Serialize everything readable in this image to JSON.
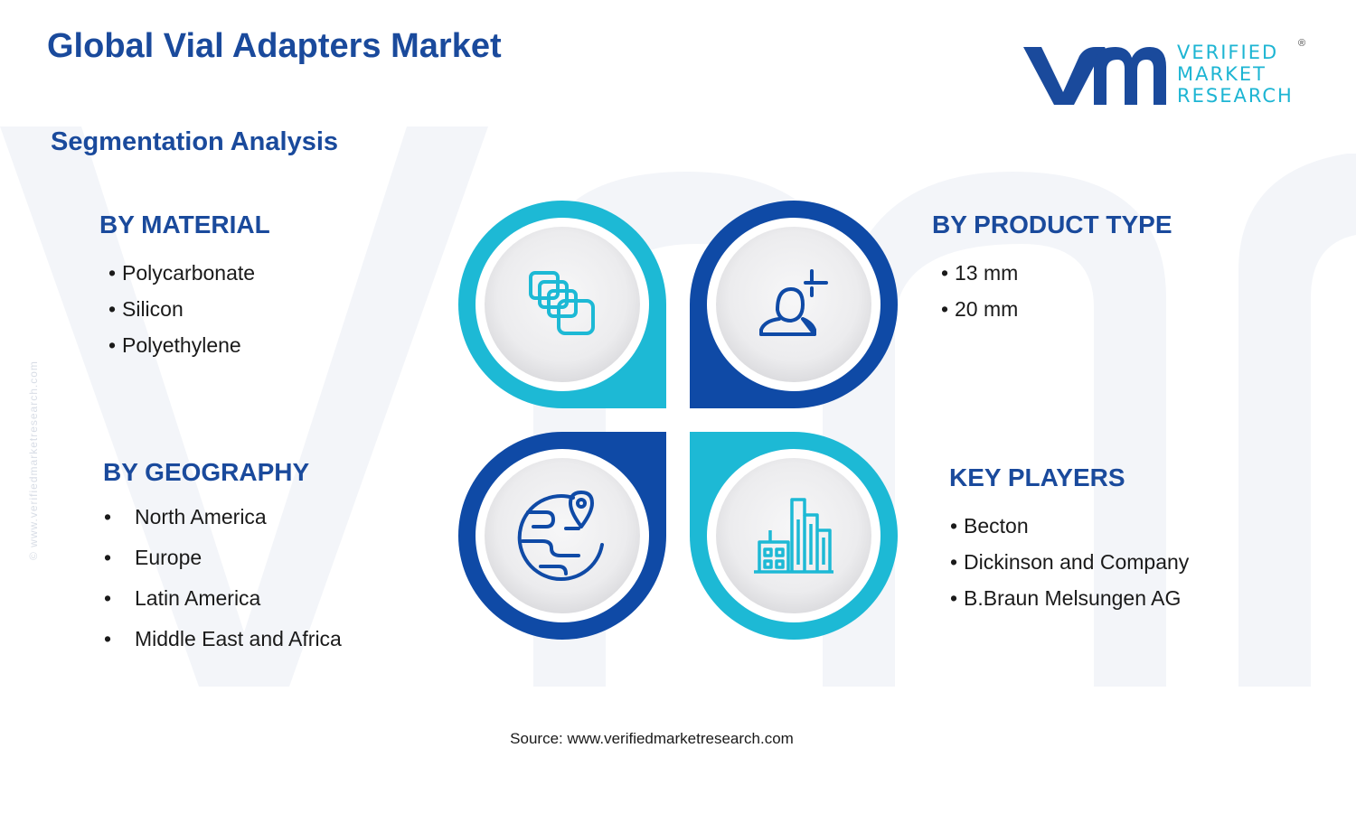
{
  "title": "Global Vial Adapters Market",
  "subtitle": "Segmentation Analysis",
  "logo": {
    "line1": "VERIFIED",
    "line2": "MARKET",
    "line3": "RESEARCH",
    "registered": "®"
  },
  "side_watermark": "© www.verifiedmarketresearch.com",
  "segments": {
    "material": {
      "heading": "BY MATERIAL",
      "items": [
        "Polycarbonate",
        "Silicon",
        "Polyethylene"
      ]
    },
    "product_type": {
      "heading": "BY PRODUCT TYPE",
      "items": [
        "13 mm",
        "20 mm"
      ]
    },
    "geography": {
      "heading": "BY GEOGRAPHY",
      "items": [
        "North America",
        "Europe",
        "Latin America",
        "Middle East and Africa"
      ]
    },
    "key_players": {
      "heading": "KEY PLAYERS",
      "items": [
        "Becton",
        "Dickinson and Company",
        "B.Braun Melsungen AG"
      ]
    }
  },
  "bullet": "•",
  "icons": {
    "material": "stacked-squares-icon",
    "product_type": "person-with-plus-icon",
    "geography": "globe-location-icon",
    "key_players": "office-buildings-icon"
  },
  "colors": {
    "dark_blue": "#1a4a9c",
    "cyan": "#1db5d3",
    "ring_dark": "#0f4aa6",
    "ring_light": "#1db9d5"
  },
  "source": "Source: www.verifiedmarketresearch.com"
}
